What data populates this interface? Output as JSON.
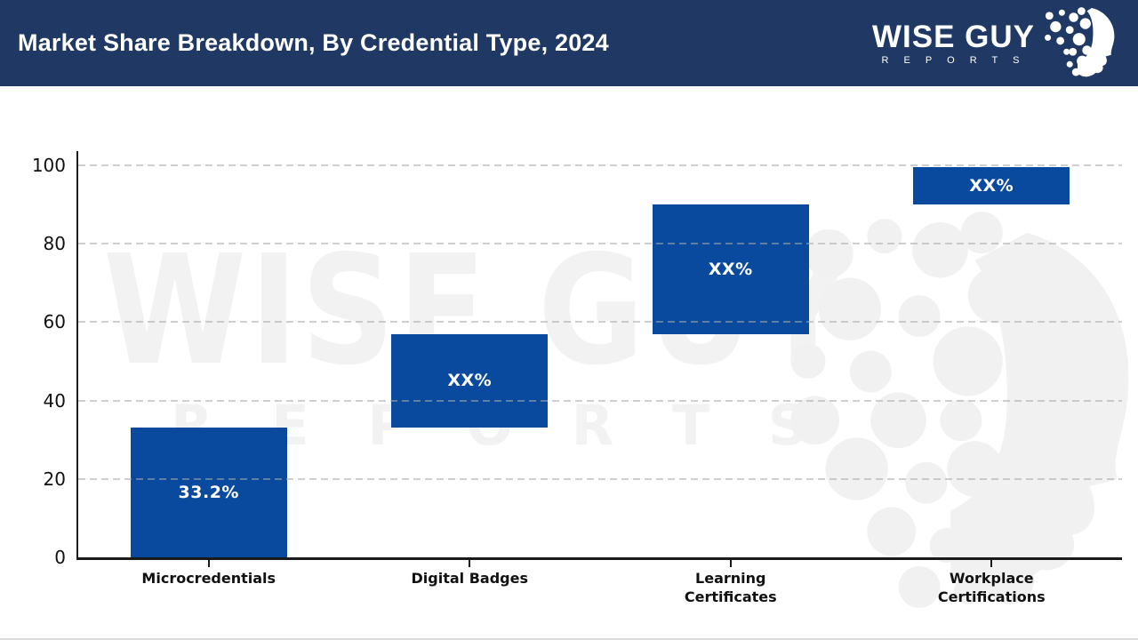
{
  "header": {
    "title": "Market Share Breakdown, By Credential Type, 2024",
    "logo": {
      "wordmark": "WISE GUY",
      "subtext": "R E P O R T S"
    }
  },
  "watermark": {
    "wordmark": "WISE GUY",
    "subtext": "R E P O R T S"
  },
  "chart_data": {
    "type": "bar",
    "subtype": "floating-waterfall",
    "title": "Market Share Breakdown, By Credential Type, 2024",
    "categories": [
      "Microcredentials",
      "Digital Badges",
      "Learning Certificates",
      "Workplace Certifications"
    ],
    "bars": [
      {
        "category": "Microcredentials",
        "category_lines": [
          "Microcredentials"
        ],
        "start": 0,
        "end": 33.2,
        "label": "33.2%"
      },
      {
        "category": "Digital Badges",
        "category_lines": [
          "Digital Badges"
        ],
        "start": 33.2,
        "end": 57,
        "label": "XX%"
      },
      {
        "category": "Learning Certificates",
        "category_lines": [
          "Learning",
          "Certificates"
        ],
        "start": 57,
        "end": 90,
        "label": "XX%"
      },
      {
        "category": "Workplace Certifications",
        "category_lines": [
          "Workplace",
          "Certifications"
        ],
        "start": 90,
        "end": 99.5,
        "label": "XX%"
      }
    ],
    "yticks": [
      0,
      20,
      40,
      60,
      80,
      100
    ],
    "ylim": [
      0,
      103.6
    ],
    "xlabel": "",
    "ylabel": "",
    "grid": "dashed-horizontal-over-bars",
    "legend": "none",
    "bar_color": "#0a4a9e",
    "label_color": "#ffffff",
    "axis_color": "#1a1a1a",
    "header_color": "#1f3864",
    "background": "#ffffff"
  }
}
